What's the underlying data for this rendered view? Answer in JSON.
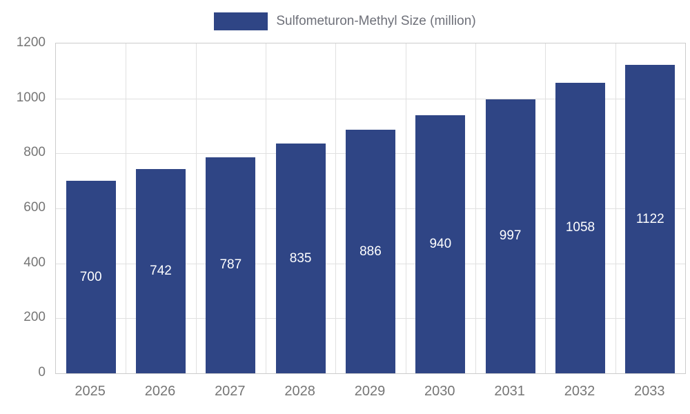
{
  "legend": {
    "label": "Sulfometuron-Methyl Size (million)"
  },
  "chart_data": {
    "type": "bar",
    "title": "Sulfometuron-Methyl Size (million)",
    "categories": [
      "2025",
      "2026",
      "2027",
      "2028",
      "2029",
      "2030",
      "2031",
      "2032",
      "2033"
    ],
    "values": [
      700,
      742,
      787,
      835,
      886,
      940,
      997,
      1058,
      1122
    ],
    "xlabel": "",
    "ylabel": "",
    "ylim": [
      0,
      1200
    ],
    "yticks": [
      0,
      200,
      400,
      600,
      800,
      1000,
      1200
    ],
    "grid": true,
    "legend_position": "top",
    "bar_color": "#2F4585",
    "value_label_color": "#ffffff",
    "axis_text_color": "#757575",
    "grid_color": "#e0e0e0"
  }
}
